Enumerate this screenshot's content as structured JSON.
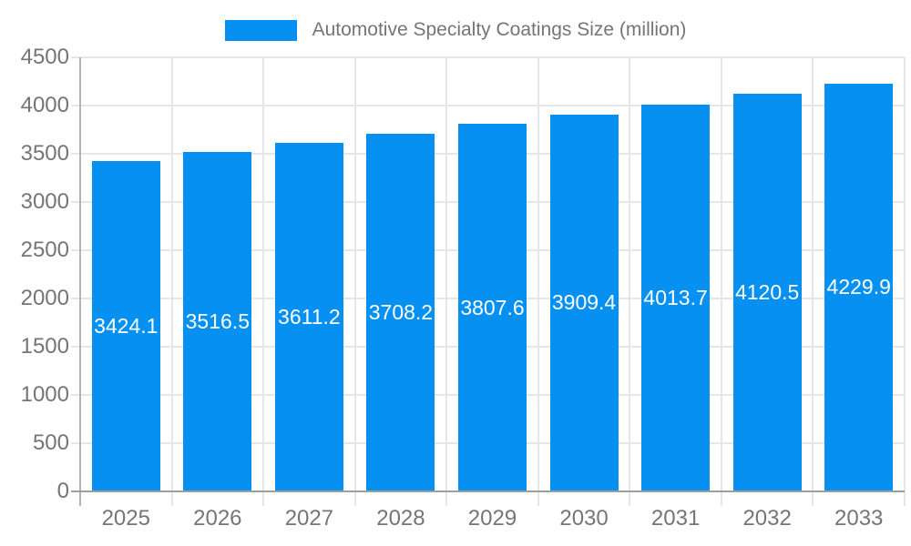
{
  "chart_data": {
    "type": "bar",
    "title": "Automotive Specialty Coatings Size (million)",
    "categories": [
      "2025",
      "2026",
      "2027",
      "2028",
      "2029",
      "2030",
      "2031",
      "2032",
      "2033"
    ],
    "series": [
      {
        "name": "Automotive Specialty Coatings Size (million)",
        "color": "#0590F2",
        "values": [
          3424.1,
          3516.5,
          3611.2,
          3708.2,
          3807.6,
          3909.4,
          4013.7,
          4120.5,
          4229.9
        ]
      }
    ],
    "xlabel": "",
    "ylabel": "",
    "ylim": [
      0,
      4500
    ],
    "yticks": [
      0,
      500,
      1000,
      1500,
      2000,
      2500,
      3000,
      3500,
      4000,
      4500
    ],
    "grid": true,
    "legend_position": "top-center",
    "value_label_position": "inside-center",
    "value_label_decimals": 1,
    "value_label_color": "#FFFFFF",
    "colors": {
      "bar": "#0590F2",
      "axis_text": "#757575",
      "legend_text": "#757575",
      "gridline": "#E6E6E6",
      "axis_line": "#B3B3B3",
      "baseline": "#9E9E9E",
      "background": "#FFFFFF"
    }
  }
}
